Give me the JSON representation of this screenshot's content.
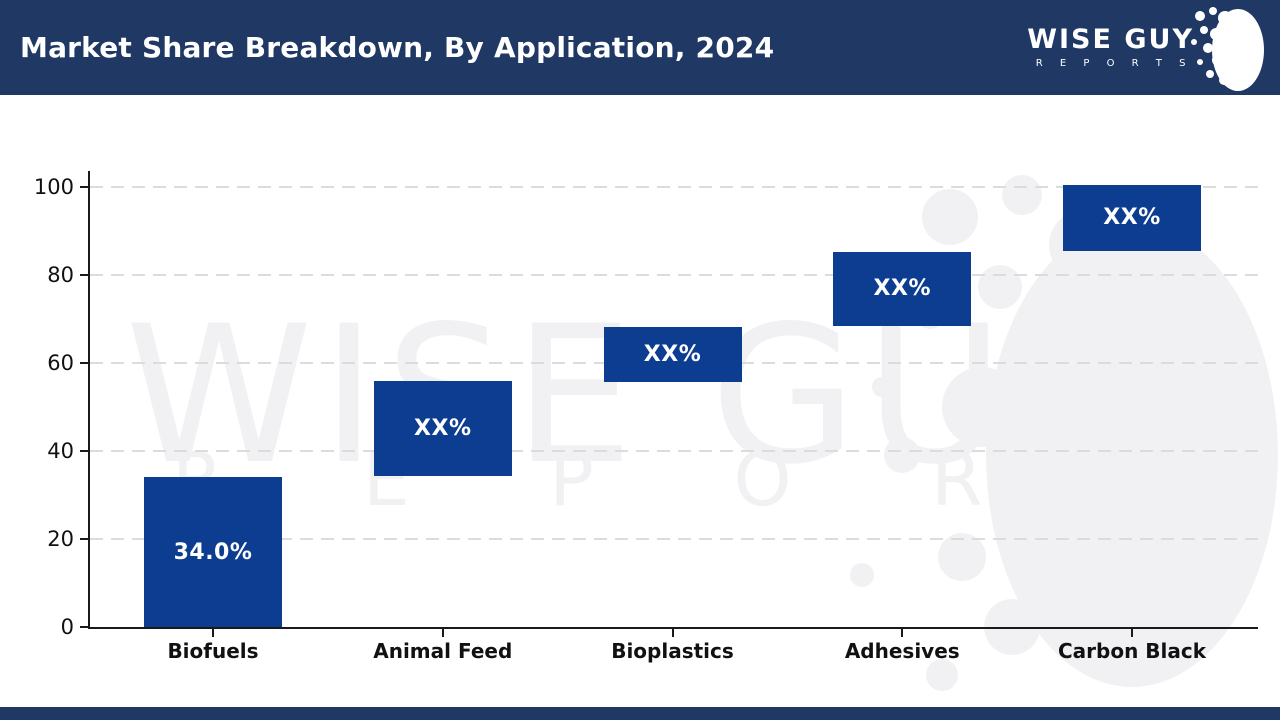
{
  "header": {
    "title": "Market Share Breakdown, By Application, 2024",
    "bg_color": "#1f3864",
    "logo": {
      "line1": "WISE GUY",
      "line2": "R E P O R T S"
    }
  },
  "watermark": {
    "line1": "WISE GUY",
    "line2": "R E P O R T S"
  },
  "footer": {
    "bg_color": "#1f3864"
  },
  "chart_data": {
    "type": "bar",
    "subtype": "waterfall",
    "title": "Market Share Breakdown, By Application, 2024",
    "categories": [
      "Biofuels",
      "Animal Feed",
      "Bioplastics",
      "Adhesives",
      "Carbon Black"
    ],
    "segments": [
      {
        "category": "Biofuels",
        "start": 0,
        "end": 34,
        "label": "34.0%"
      },
      {
        "category": "Animal Feed",
        "start": 34.4,
        "end": 55.8,
        "label": "XX%"
      },
      {
        "category": "Bioplastics",
        "start": 55.7,
        "end": 68.1,
        "label": "XX%"
      },
      {
        "category": "Adhesives",
        "start": 68.3,
        "end": 85.3,
        "label": "XX%"
      },
      {
        "category": "Carbon Black",
        "start": 85.5,
        "end": 100.5,
        "label": "XX%"
      }
    ],
    "xlabel": "",
    "ylabel": "",
    "yticks": [
      0,
      20,
      40,
      60,
      80,
      100
    ],
    "ylim": [
      0,
      103.6
    ],
    "grid": "horizontal-dashed",
    "legend": "none",
    "bar_color": "#0d3d91",
    "bar_label_color": "#ffffff",
    "axis_color": "#1a1a1a",
    "gridline_color": "#dcdcdc"
  }
}
